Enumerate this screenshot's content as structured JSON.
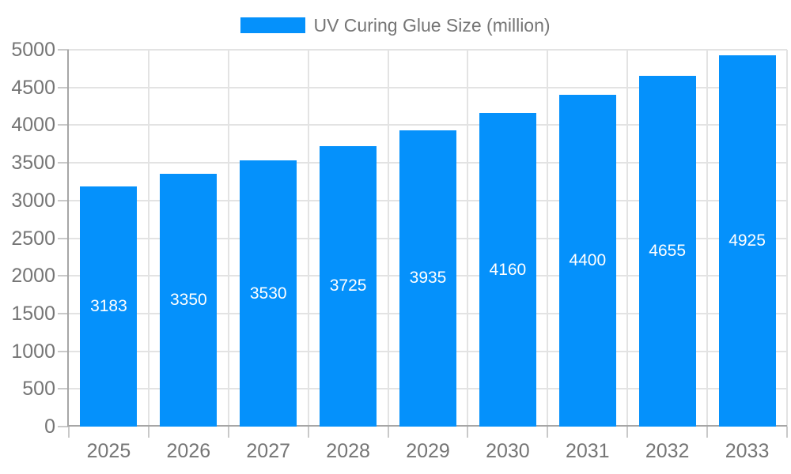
{
  "chart_data": {
    "type": "bar",
    "title": "UV Curing Glue Size (million)",
    "xlabel": "",
    "ylabel": "",
    "categories": [
      "2025",
      "2026",
      "2027",
      "2028",
      "2029",
      "2030",
      "2031",
      "2032",
      "2033"
    ],
    "values": [
      3183,
      3350,
      3530,
      3725,
      3935,
      4160,
      4400,
      4655,
      4925
    ],
    "ylim": [
      0,
      5000
    ],
    "y_tick_step": 500,
    "grid": true,
    "legend_position": "top-center",
    "value_label_position": "inside-middle",
    "colors": {
      "bar": "#0591fb",
      "grid": "#e3e3e3",
      "axis": "#a6a6a6",
      "tick": "#c9c9c9",
      "axis_text": "#757575",
      "value_label_text": "#ffffff",
      "background": "#ffffff"
    }
  }
}
